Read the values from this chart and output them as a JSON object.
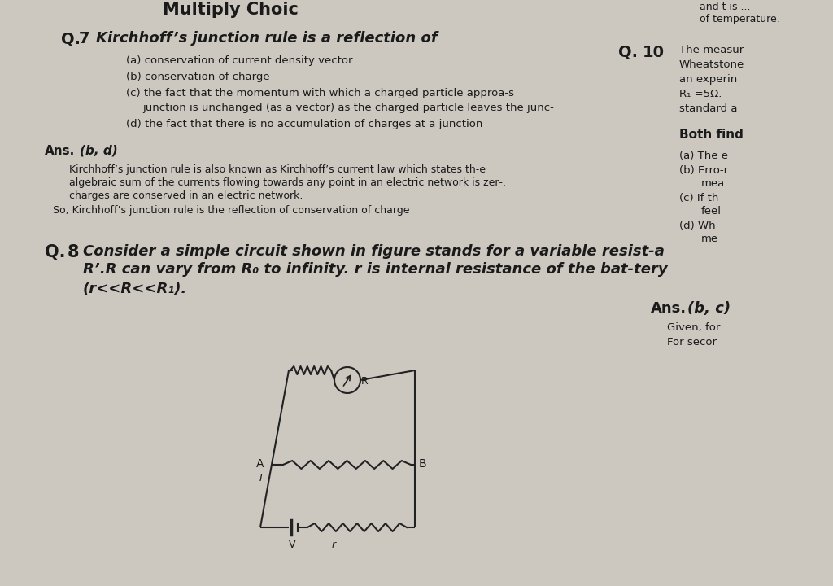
{
  "background_color": "#ccc8c0",
  "main_color": "#1a1a1a",
  "title": "Multiply Choic",
  "top_right1": "and t is ...",
  "top_right2": "of temperature.",
  "q7_num": "Q.",
  "q7_7": "7",
  "q7_main": "Kirchhoff’s junction rule is a reflection of",
  "q7a": "(a) conservation of current density vector",
  "q7b": "(b) conservation of charge",
  "q7c1": "(c) the fact that the momentum with which a charged particle approa­s",
  "q7c2": "junction is unchanged (as a vector) as the charged particle leaves the junc­",
  "q7d": "(d) the fact that there is no accumulation of charges at a junction",
  "ans7a": "Ans.",
  "ans7b": "(b, d)",
  "ans7_1": "Kirchhoff’s junction rule is also known as Kirchhoff’s current law which states th­e",
  "ans7_2": "algebraic sum of the currents flowing towards any point in an electric network is zer­.",
  "ans7_3": "charges are conserved in an electric network.",
  "ans7_4": "So, Kirchhoff’s junction rule is the reflection of conservation of charge",
  "q10_num": "Q.",
  "q10_10": "10",
  "q10_1": "The measur",
  "q10_2": "Wheatstone",
  "q10_3": "an experin",
  "q10_4": "R₁ =5Ω.",
  "q10_5": "standard a",
  "both_find": "Both find",
  "a_opt": "(a) The e",
  "b_opt": "(b) Erro­r",
  "b_opt2": "mea",
  "c_opt": "(c) If th",
  "c_opt2": "feel",
  "d_opt": "(d) Wh",
  "d_opt2": "me",
  "q8_num": "Q.",
  "q8_8": "8",
  "q8_1": "Consider a simple circuit shown in figure stands for a variable resist­a",
  "q8_2": "R’.R can vary from R₀ to infinity. r is internal resistance of the bat­tery",
  "q8_3": "(r<<R<<R₁).",
  "ans8a": "Ans.",
  "ans8b": "(b, c)",
  "ans8_1": "Given, for",
  "ans8_2": "For secor"
}
